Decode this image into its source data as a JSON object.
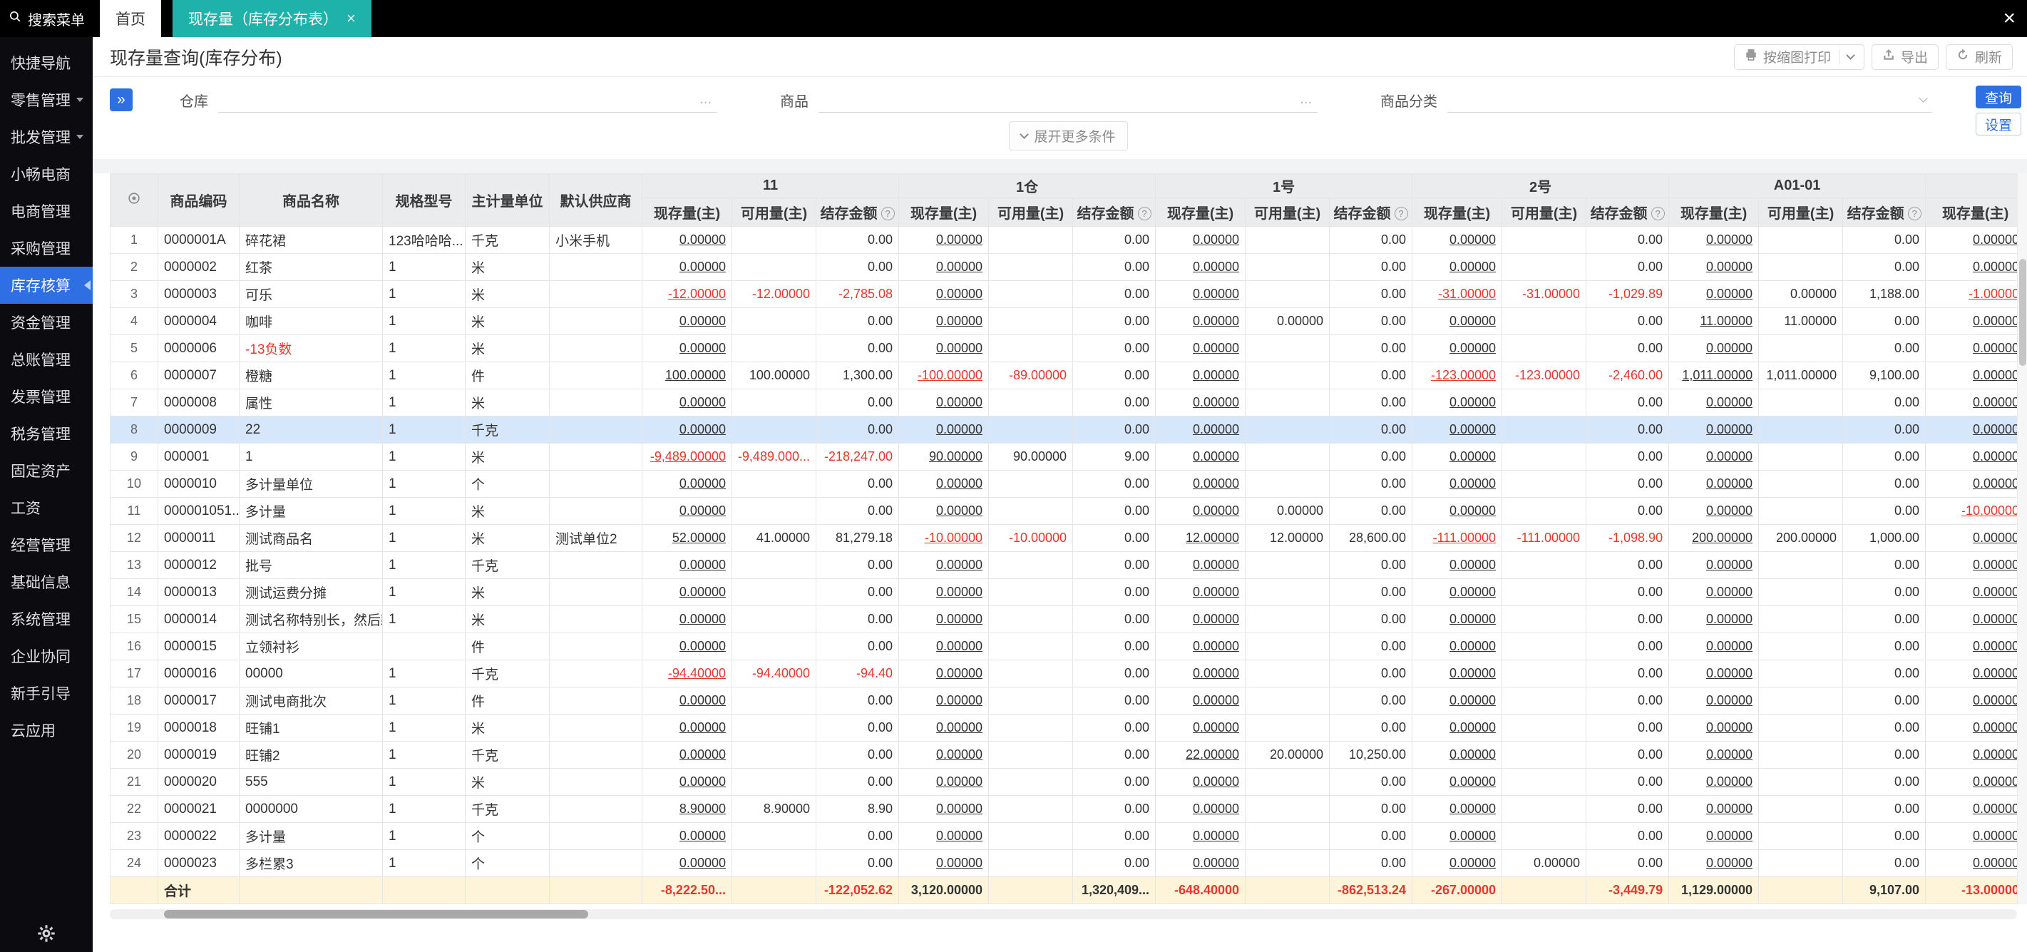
{
  "theme": {
    "accent_blue": "#2f6fe4",
    "accent_teal": "#1fb2aa",
    "negative_red": "#e5382c",
    "selected_row_bg": "#d6e7fc",
    "total_row_bg": "#fdf4da",
    "sidebar_bg": "#0b0b10",
    "header_bg": "#ebecee"
  },
  "window": {
    "close": "×"
  },
  "tabbar": {
    "tabs": [
      {
        "label": "首页",
        "active": false
      },
      {
        "label": "现存量（库存分布表）",
        "active": true,
        "closable": true
      }
    ]
  },
  "sidebar": {
    "search_label": "搜索菜单",
    "items": [
      {
        "label": "快捷导航"
      },
      {
        "label": "零售管理",
        "caret": true
      },
      {
        "label": "批发管理",
        "caret": true
      },
      {
        "label": "小畅电商"
      },
      {
        "label": "电商管理"
      },
      {
        "label": "采购管理"
      },
      {
        "label": "库存核算",
        "selected": true
      },
      {
        "label": "资金管理"
      },
      {
        "label": "总账管理"
      },
      {
        "label": "发票管理"
      },
      {
        "label": "税务管理"
      },
      {
        "label": "固定资产"
      },
      {
        "label": "工资"
      },
      {
        "label": "经营管理"
      },
      {
        "label": "基础信息"
      },
      {
        "label": "系统管理"
      },
      {
        "label": "企业协同"
      },
      {
        "label": "新手引导"
      },
      {
        "label": "云应用"
      }
    ]
  },
  "page": {
    "title": "现存量查询(库存分布)",
    "actions": {
      "print": "按缩图打印",
      "export": "导出",
      "refresh": "刷新"
    }
  },
  "filters": {
    "collapse_icon": "»",
    "warehouse_label": "仓库",
    "goods_label": "商品",
    "category_label": "商品分类",
    "picker_ellipsis": "...",
    "query_button": "查询",
    "settings_button": "设置",
    "expand_more": "展开更多条件"
  },
  "table": {
    "help_icon": "?",
    "fixed_headers": [
      "商品编码",
      "商品名称",
      "规格型号",
      "主计量单位",
      "默认供应商"
    ],
    "warehouse_groups": [
      "11",
      "1仓",
      "1号",
      "2号",
      "A01-01"
    ],
    "sub_headers": [
      "现存量(主)",
      "可用量(主)",
      "结存金额"
    ],
    "extra_column_header": "现存量(主)",
    "total_label": "合计",
    "rows": [
      {
        "n": "1",
        "code": "0000001A",
        "name": "碎花裙",
        "spec": "123哈哈哈...",
        "unit": "千克",
        "sup": "小米手机",
        "g": [
          [
            "0.00000",
            "",
            "0.00"
          ],
          [
            "0.00000",
            "",
            "0.00"
          ],
          [
            "0.00000",
            "",
            "0.00"
          ],
          [
            "0.00000",
            "",
            "0.00"
          ],
          [
            "0.00000",
            "",
            "0.00"
          ]
        ],
        "last": "0.00000"
      },
      {
        "n": "2",
        "code": "0000002",
        "name": "红茶",
        "spec": "1",
        "unit": "米",
        "sup": "",
        "g": [
          [
            "0.00000",
            "",
            "0.00"
          ],
          [
            "0.00000",
            "",
            "0.00"
          ],
          [
            "0.00000",
            "",
            "0.00"
          ],
          [
            "0.00000",
            "",
            "0.00"
          ],
          [
            "0.00000",
            "",
            "0.00"
          ]
        ],
        "last": "0.00000"
      },
      {
        "n": "3",
        "code": "0000003",
        "name": "可乐",
        "spec": "1",
        "unit": "米",
        "sup": "",
        "g": [
          [
            "-12.00000",
            "-12.00000",
            "-2,785.08"
          ],
          [
            "0.00000",
            "",
            "0.00"
          ],
          [
            "0.00000",
            "",
            "0.00"
          ],
          [
            "-31.00000",
            "-31.00000",
            "-1,029.89"
          ],
          [
            "0.00000",
            "0.00000",
            "1,188.00"
          ]
        ],
        "last": "-1.00000"
      },
      {
        "n": "4",
        "code": "0000004",
        "name": "咖啡",
        "spec": "1",
        "unit": "米",
        "sup": "",
        "g": [
          [
            "0.00000",
            "",
            "0.00"
          ],
          [
            "0.00000",
            "",
            "0.00"
          ],
          [
            "0.00000",
            "0.00000",
            "0.00"
          ],
          [
            "0.00000",
            "",
            "0.00"
          ],
          [
            "11.00000",
            "11.00000",
            "0.00"
          ]
        ],
        "last": "0.00000"
      },
      {
        "n": "5",
        "code": "0000006",
        "name": "-13负数",
        "spec": "1",
        "unit": "米",
        "sup": "",
        "g": [
          [
            "0.00000",
            "",
            "0.00"
          ],
          [
            "0.00000",
            "",
            "0.00"
          ],
          [
            "0.00000",
            "",
            "0.00"
          ],
          [
            "0.00000",
            "",
            "0.00"
          ],
          [
            "0.00000",
            "",
            "0.00"
          ]
        ],
        "last": "0.00000"
      },
      {
        "n": "6",
        "code": "0000007",
        "name": "橙糖",
        "spec": "1",
        "unit": "件",
        "sup": "",
        "g": [
          [
            "100.00000",
            "100.00000",
            "1,300.00"
          ],
          [
            "-100.00000",
            "-89.00000",
            "0.00"
          ],
          [
            "0.00000",
            "",
            "0.00"
          ],
          [
            "-123.00000",
            "-123.00000",
            "-2,460.00"
          ],
          [
            "1,011.00000",
            "1,011.00000",
            "9,100.00"
          ]
        ],
        "last": "0.00000"
      },
      {
        "n": "7",
        "code": "0000008",
        "name": "属性",
        "spec": "1",
        "unit": "米",
        "sup": "",
        "g": [
          [
            "0.00000",
            "",
            "0.00"
          ],
          [
            "0.00000",
            "",
            "0.00"
          ],
          [
            "0.00000",
            "",
            "0.00"
          ],
          [
            "0.00000",
            "",
            "0.00"
          ],
          [
            "0.00000",
            "",
            "0.00"
          ]
        ],
        "last": "0.00000"
      },
      {
        "n": "8",
        "code": "0000009",
        "name": "22",
        "spec": "1",
        "unit": "千克",
        "sup": "",
        "selected": true,
        "g": [
          [
            "0.00000",
            "",
            "0.00"
          ],
          [
            "0.00000",
            "",
            "0.00"
          ],
          [
            "0.00000",
            "",
            "0.00"
          ],
          [
            "0.00000",
            "",
            "0.00"
          ],
          [
            "0.00000",
            "",
            "0.00"
          ]
        ],
        "last": "0.00000"
      },
      {
        "n": "9",
        "code": "000001",
        "name": "1",
        "spec": "1",
        "unit": "米",
        "sup": "",
        "g": [
          [
            "-9,489.00000",
            "-9,489.000...",
            "-218,247.00"
          ],
          [
            "90.00000",
            "90.00000",
            "9.00"
          ],
          [
            "0.00000",
            "",
            "0.00"
          ],
          [
            "0.00000",
            "",
            "0.00"
          ],
          [
            "0.00000",
            "",
            "0.00"
          ]
        ],
        "last": "0.00000"
      },
      {
        "n": "10",
        "code": "0000010",
        "name": "多计量单位",
        "spec": "1",
        "unit": "个",
        "sup": "",
        "g": [
          [
            "0.00000",
            "",
            "0.00"
          ],
          [
            "0.00000",
            "",
            "0.00"
          ],
          [
            "0.00000",
            "",
            "0.00"
          ],
          [
            "0.00000",
            "",
            "0.00"
          ],
          [
            "0.00000",
            "",
            "0.00"
          ]
        ],
        "last": "0.00000"
      },
      {
        "n": "11",
        "code": "000001051...",
        "name": "多计量",
        "spec": "1",
        "unit": "米",
        "sup": "",
        "g": [
          [
            "0.00000",
            "",
            "0.00"
          ],
          [
            "0.00000",
            "",
            "0.00"
          ],
          [
            "0.00000",
            "0.00000",
            "0.00"
          ],
          [
            "0.00000",
            "",
            "0.00"
          ],
          [
            "0.00000",
            "",
            "0.00"
          ]
        ],
        "last": "-10.00000"
      },
      {
        "n": "12",
        "code": "0000011",
        "name": "测试商品名",
        "spec": "1",
        "unit": "米",
        "sup": "测试单位2",
        "g": [
          [
            "52.00000",
            "41.00000",
            "81,279.18"
          ],
          [
            "-10.00000",
            "-10.00000",
            "0.00"
          ],
          [
            "12.00000",
            "12.00000",
            "28,600.00"
          ],
          [
            "-111.00000",
            "-111.00000",
            "-1,098.90"
          ],
          [
            "200.00000",
            "200.00000",
            "1,000.00"
          ]
        ],
        "last": "0.00000"
      },
      {
        "n": "13",
        "code": "0000012",
        "name": "批号",
        "spec": "1",
        "unit": "千克",
        "sup": "",
        "g": [
          [
            "0.00000",
            "",
            "0.00"
          ],
          [
            "0.00000",
            "",
            "0.00"
          ],
          [
            "0.00000",
            "",
            "0.00"
          ],
          [
            "0.00000",
            "",
            "0.00"
          ],
          [
            "0.00000",
            "",
            "0.00"
          ]
        ],
        "last": "0.00000"
      },
      {
        "n": "14",
        "code": "0000013",
        "name": "测试运费分摊",
        "spec": "1",
        "unit": "米",
        "sup": "",
        "g": [
          [
            "0.00000",
            "",
            "0.00"
          ],
          [
            "0.00000",
            "",
            "0.00"
          ],
          [
            "0.00000",
            "",
            "0.00"
          ],
          [
            "0.00000",
            "",
            "0.00"
          ],
          [
            "0.00000",
            "",
            "0.00"
          ]
        ],
        "last": "0.00000"
      },
      {
        "n": "15",
        "code": "0000014",
        "name": "测试名称特别长，然后款...",
        "spec": "1",
        "unit": "米",
        "sup": "",
        "g": [
          [
            "0.00000",
            "",
            "0.00"
          ],
          [
            "0.00000",
            "",
            "0.00"
          ],
          [
            "0.00000",
            "",
            "0.00"
          ],
          [
            "0.00000",
            "",
            "0.00"
          ],
          [
            "0.00000",
            "",
            "0.00"
          ]
        ],
        "last": "0.00000"
      },
      {
        "n": "16",
        "code": "0000015",
        "name": "立领衬衫",
        "spec": "",
        "unit": "件",
        "sup": "",
        "g": [
          [
            "0.00000",
            "",
            "0.00"
          ],
          [
            "0.00000",
            "",
            "0.00"
          ],
          [
            "0.00000",
            "",
            "0.00"
          ],
          [
            "0.00000",
            "",
            "0.00"
          ],
          [
            "0.00000",
            "",
            "0.00"
          ]
        ],
        "last": "0.00000"
      },
      {
        "n": "17",
        "code": "0000016",
        "name": "00000",
        "spec": "1",
        "unit": "千克",
        "sup": "",
        "g": [
          [
            "-94.40000",
            "-94.40000",
            "-94.40"
          ],
          [
            "0.00000",
            "",
            "0.00"
          ],
          [
            "0.00000",
            "",
            "0.00"
          ],
          [
            "0.00000",
            "",
            "0.00"
          ],
          [
            "0.00000",
            "",
            "0.00"
          ]
        ],
        "last": "0.00000"
      },
      {
        "n": "18",
        "code": "0000017",
        "name": "测试电商批次",
        "spec": "1",
        "unit": "件",
        "sup": "",
        "g": [
          [
            "0.00000",
            "",
            "0.00"
          ],
          [
            "0.00000",
            "",
            "0.00"
          ],
          [
            "0.00000",
            "",
            "0.00"
          ],
          [
            "0.00000",
            "",
            "0.00"
          ],
          [
            "0.00000",
            "",
            "0.00"
          ]
        ],
        "last": "0.00000"
      },
      {
        "n": "19",
        "code": "0000018",
        "name": "旺铺1",
        "spec": "1",
        "unit": "米",
        "sup": "",
        "g": [
          [
            "0.00000",
            "",
            "0.00"
          ],
          [
            "0.00000",
            "",
            "0.00"
          ],
          [
            "0.00000",
            "",
            "0.00"
          ],
          [
            "0.00000",
            "",
            "0.00"
          ],
          [
            "0.00000",
            "",
            "0.00"
          ]
        ],
        "last": "0.00000"
      },
      {
        "n": "20",
        "code": "0000019",
        "name": "旺铺2",
        "spec": "1",
        "unit": "千克",
        "sup": "",
        "g": [
          [
            "0.00000",
            "",
            "0.00"
          ],
          [
            "0.00000",
            "",
            "0.00"
          ],
          [
            "22.00000",
            "20.00000",
            "10,250.00"
          ],
          [
            "0.00000",
            "",
            "0.00"
          ],
          [
            "0.00000",
            "",
            "0.00"
          ]
        ],
        "last": "0.00000"
      },
      {
        "n": "21",
        "code": "0000020",
        "name": "555",
        "spec": "1",
        "unit": "米",
        "sup": "",
        "g": [
          [
            "0.00000",
            "",
            "0.00"
          ],
          [
            "0.00000",
            "",
            "0.00"
          ],
          [
            "0.00000",
            "",
            "0.00"
          ],
          [
            "0.00000",
            "",
            "0.00"
          ],
          [
            "0.00000",
            "",
            "0.00"
          ]
        ],
        "last": "0.00000"
      },
      {
        "n": "22",
        "code": "0000021",
        "name": "0000000",
        "spec": "1",
        "unit": "千克",
        "sup": "",
        "g": [
          [
            "8.90000",
            "8.90000",
            "8.90"
          ],
          [
            "0.00000",
            "",
            "0.00"
          ],
          [
            "0.00000",
            "",
            "0.00"
          ],
          [
            "0.00000",
            "",
            "0.00"
          ],
          [
            "0.00000",
            "",
            "0.00"
          ]
        ],
        "last": "0.00000"
      },
      {
        "n": "23",
        "code": "0000022",
        "name": "多计量",
        "spec": "1",
        "unit": "个",
        "sup": "",
        "g": [
          [
            "0.00000",
            "",
            "0.00"
          ],
          [
            "0.00000",
            "",
            "0.00"
          ],
          [
            "0.00000",
            "",
            "0.00"
          ],
          [
            "0.00000",
            "",
            "0.00"
          ],
          [
            "0.00000",
            "",
            "0.00"
          ]
        ],
        "last": "0.00000"
      },
      {
        "n": "24",
        "code": "0000023",
        "name": "多栏累3",
        "spec": "1",
        "unit": "个",
        "sup": "",
        "g": [
          [
            "0.00000",
            "",
            "0.00"
          ],
          [
            "0.00000",
            "",
            "0.00"
          ],
          [
            "0.00000",
            "",
            "0.00"
          ],
          [
            "0.00000",
            "0.00000",
            "0.00"
          ],
          [
            "0.00000",
            "",
            "0.00"
          ]
        ],
        "last": "0.00000"
      }
    ],
    "total": {
      "label": "合计",
      "cells": [
        [
          "-8,222.50...",
          "",
          "-122,052.62"
        ],
        [
          "3,120.00000",
          "",
          "1,320,409..."
        ],
        [
          "-648.40000",
          "",
          "-862,513.24"
        ],
        [
          "-267.00000",
          "",
          "-3,449.79"
        ],
        [
          "1,129.00000",
          "",
          "9,107.00"
        ]
      ],
      "last": "-13.00000"
    }
  }
}
